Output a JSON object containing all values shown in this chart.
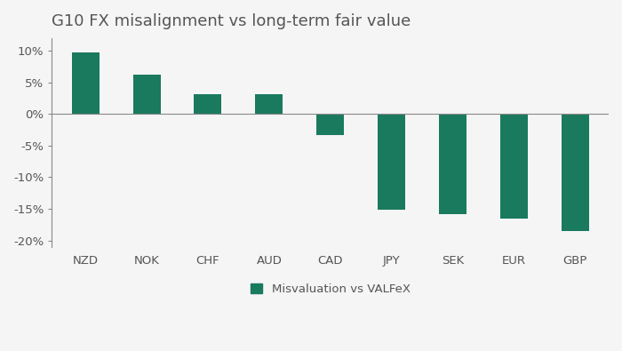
{
  "title": "G10 FX misalignment vs long-term fair value",
  "categories": [
    "NZD",
    "NOK",
    "CHF",
    "AUD",
    "CAD",
    "JPY",
    "SEK",
    "EUR",
    "GBP"
  ],
  "values": [
    9.8,
    6.2,
    3.2,
    3.2,
    -3.3,
    -15.2,
    -15.8,
    -16.5,
    -18.5
  ],
  "bar_color": "#1a7a5e",
  "ylim": [
    -21,
    12
  ],
  "yticks": [
    -20,
    -15,
    -10,
    -5,
    0,
    5,
    10
  ],
  "yticklabels": [
    "-20%",
    "-15%",
    "-10%",
    "-5%",
    "0%",
    "5%",
    "10%"
  ],
  "legend_label": "Misvaluation vs VALFeX",
  "title_fontsize": 13,
  "tick_fontsize": 9.5,
  "legend_fontsize": 9.5,
  "background_color": "#f5f5f5",
  "spine_color": "#888888",
  "zeroline_color": "#888888",
  "text_color": "#555555"
}
